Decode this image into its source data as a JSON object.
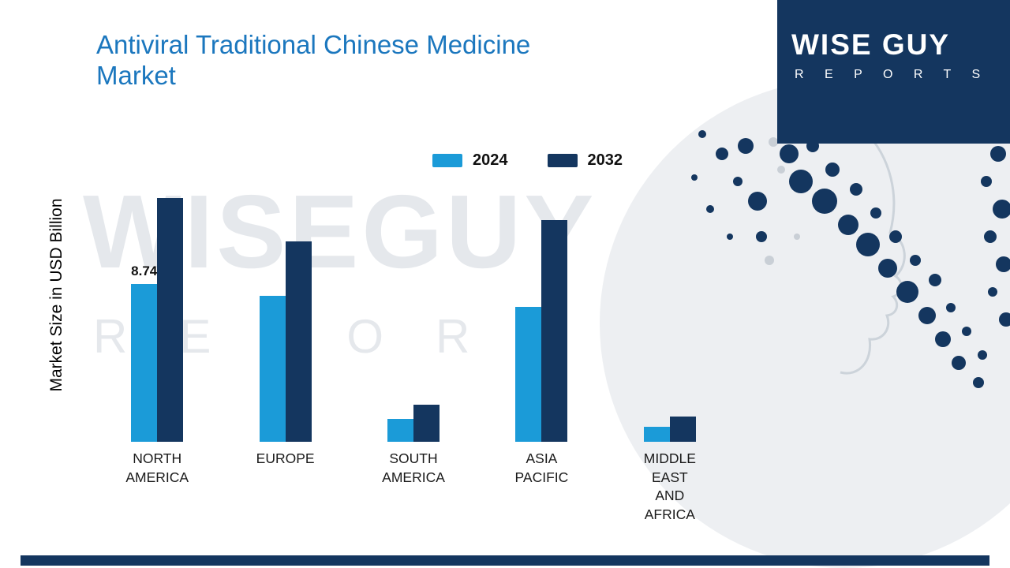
{
  "page": {
    "title": "Antiviral Traditional Chinese Medicine Market"
  },
  "logo": {
    "name": "WISE GUY",
    "sub": "R E P O R T S"
  },
  "watermark": {
    "name": "WISEGUY",
    "sub": "REPORTS"
  },
  "colors": {
    "title_blue": "#1b77be",
    "series_2024": "#1b9bd8",
    "series_2032": "#14365f",
    "navy": "#14365f",
    "light_gray_circle": "#edeff2"
  },
  "legend": {
    "items": [
      {
        "label": "2024",
        "color": "#1b9bd8"
      },
      {
        "label": "2032",
        "color": "#14365f"
      }
    ]
  },
  "chart_data": {
    "type": "bar",
    "title": "Antiviral Traditional Chinese Medicine Market",
    "xlabel": "",
    "ylabel": "Market Size in USD Billion",
    "ylim": [
      0,
      14
    ],
    "grid": false,
    "legend_position": "top",
    "categories": [
      "NORTH AMERICA",
      "EUROPE",
      "SOUTH AMERICA",
      "ASIA PACIFIC",
      "MIDDLE EAST AND AFRICA"
    ],
    "category_label_lines": [
      [
        "NORTH",
        "AMERICA"
      ],
      [
        "EUROPE"
      ],
      [
        "SOUTH",
        "AMERICA"
      ],
      [
        "ASIA",
        "PACIFIC"
      ],
      [
        "MIDDLE",
        "EAST",
        "AND",
        "AFRICA"
      ]
    ],
    "series": [
      {
        "name": "2024",
        "color": "#1b9bd8",
        "values": [
          8.74,
          8.1,
          1.25,
          7.5,
          0.85
        ]
      },
      {
        "name": "2032",
        "color": "#14365f",
        "values": [
          13.5,
          11.1,
          2.05,
          12.3,
          1.4
        ]
      }
    ],
    "value_labels": [
      {
        "series_index": 0,
        "category_index": 0,
        "text": "8.74"
      }
    ]
  }
}
